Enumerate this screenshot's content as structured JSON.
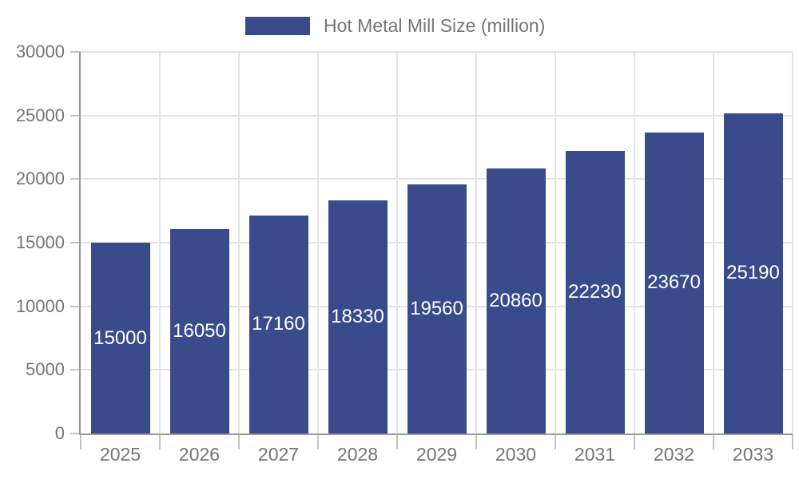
{
  "chart_data": {
    "type": "bar",
    "title": "Hot Metal Mill Size (million)",
    "categories": [
      "2025",
      "2026",
      "2027",
      "2028",
      "2029",
      "2030",
      "2031",
      "2032",
      "2033"
    ],
    "values": [
      15000,
      16050,
      17160,
      18330,
      19560,
      20860,
      22230,
      23670,
      25190
    ],
    "xlabel": "",
    "ylabel": "",
    "ylim": [
      0,
      30000
    ],
    "yticks": [
      0,
      5000,
      10000,
      15000,
      20000,
      25000,
      30000
    ],
    "grid": true,
    "legend_position": "top",
    "bar_labels_inside": true,
    "colors": {
      "bar": "#3A4B8C",
      "bar_label": "#FFFFFF",
      "grid": "#E4E4E4",
      "axis": "#999999",
      "tick": "#C4C4C4",
      "tick_text": "#757575",
      "legend_text": "#757575",
      "background": "#FFFFFF"
    }
  }
}
